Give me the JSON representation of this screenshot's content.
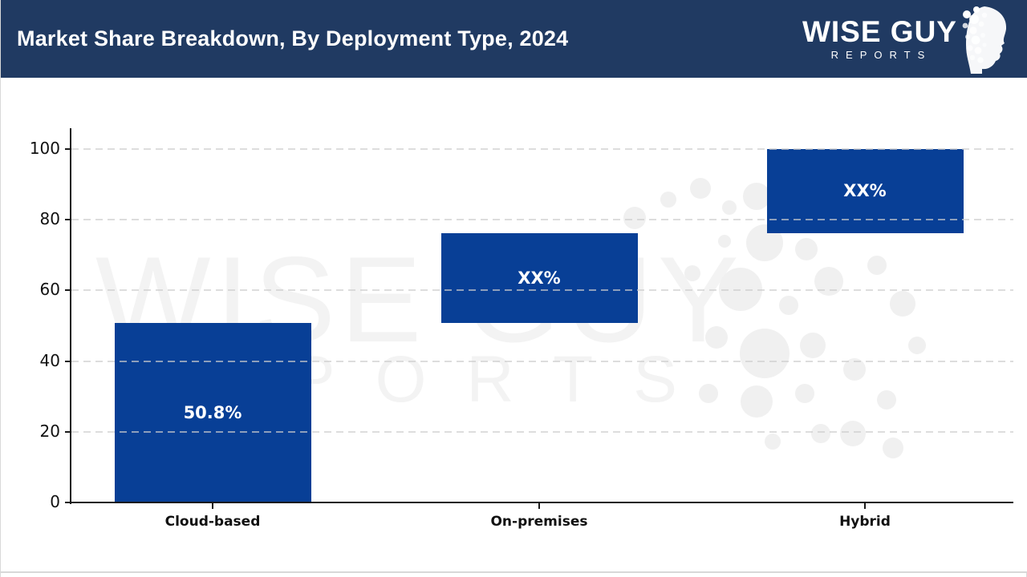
{
  "header": {
    "title": "Market Share Breakdown, By Deployment Type, 2024",
    "logo": {
      "line1": "WISE GUY",
      "line2": "REPORTS"
    }
  },
  "watermark": {
    "line1": "WISE GUY",
    "line2": "REPORTS"
  },
  "chart_data": {
    "type": "bar",
    "subtype": "floating-stacked-percentage",
    "title": "Market Share Breakdown, By Deployment Type, 2024",
    "xlabel": "",
    "ylabel": "",
    "categories": [
      "Cloud-based",
      "On-premises",
      "Hybrid"
    ],
    "bars": [
      {
        "category": "Cloud-based",
        "from": 0,
        "to": 50.8,
        "label": "50.8%"
      },
      {
        "category": "On-premises",
        "from": 50.8,
        "to": 76.2,
        "label": "XX%"
      },
      {
        "category": "Hybrid",
        "from": 76.2,
        "to": 100,
        "label": "XX%"
      }
    ],
    "ylim": [
      0,
      100
    ],
    "yticks": [
      0,
      20,
      40,
      60,
      80,
      100
    ],
    "grid": "horizontal-dashed",
    "legend": "none",
    "bar_color": "#083f96",
    "header_color": "#203a62",
    "value_label_color": "#ffffff"
  }
}
